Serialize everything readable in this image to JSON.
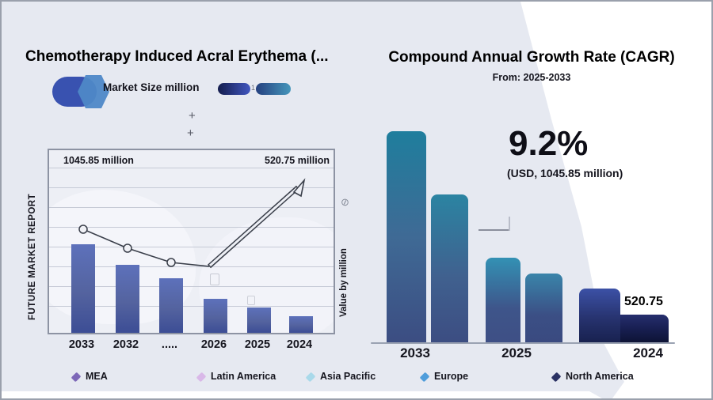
{
  "left_panel": {
    "title": "Chemotherapy Induced Acral Erythema (...",
    "market_size_label": "Market Size million",
    "pill_separator": "1",
    "plus_mark": "+",
    "side_watermark": "FUTURE MARKET REPORT",
    "annotation_left": "1045.85 million",
    "annotation_right": "520.75 million"
  },
  "divider": {
    "axis_label": "Value by million",
    "icon_glyph": "⊘"
  },
  "right_panel": {
    "title": "Compound Annual Growth Rate (CAGR)",
    "subtitle": "From: 2025-2033",
    "cagr_value": "9.2%",
    "cagr_caption": "(USD, 1045.85 million)",
    "data_label_2024": "520.75"
  },
  "legend": {
    "items": [
      {
        "label": "MEA",
        "color": "#7d68b8"
      },
      {
        "label": "Latin America",
        "color": "#d9b8e8"
      },
      {
        "label": "Asia Pacific",
        "color": "#a9d9ea"
      },
      {
        "label": "Europe",
        "color": "#4f9ddb"
      },
      {
        "label": "North America",
        "color": "#2a3163"
      }
    ]
  },
  "chart_data": [
    {
      "type": "bar",
      "title": "Chemotherapy Induced Acral Erythema (... — Market Size million",
      "categories": [
        "2033",
        "2032",
        ".....",
        "2026",
        "2025",
        "2024"
      ],
      "values_relative": [
        1.0,
        0.77,
        0.62,
        0.38,
        0.29,
        0.19
      ],
      "annotations": [
        "1045.85 million",
        "520.75 million"
      ],
      "overlay": "declining line with 3 circle markers then upward double-line arrow",
      "grid": true,
      "legend_position": "none"
    },
    {
      "type": "bar",
      "title": "Compound Annual Growth Rate (CAGR)",
      "subtitle": "From: 2025-2033",
      "categories": [
        "2033",
        "2025",
        "2024"
      ],
      "series": [
        {
          "name": "bar-1",
          "values_relative": [
            1.0,
            0.4,
            0.255
          ]
        },
        {
          "name": "bar-2",
          "values_relative": [
            0.7,
            0.326,
            0.131
          ]
        }
      ],
      "cagr": "9.2%",
      "caption": "(USD, 1045.85 million)",
      "data_labels": {
        "2024": "520.75"
      },
      "grid": false
    }
  ]
}
